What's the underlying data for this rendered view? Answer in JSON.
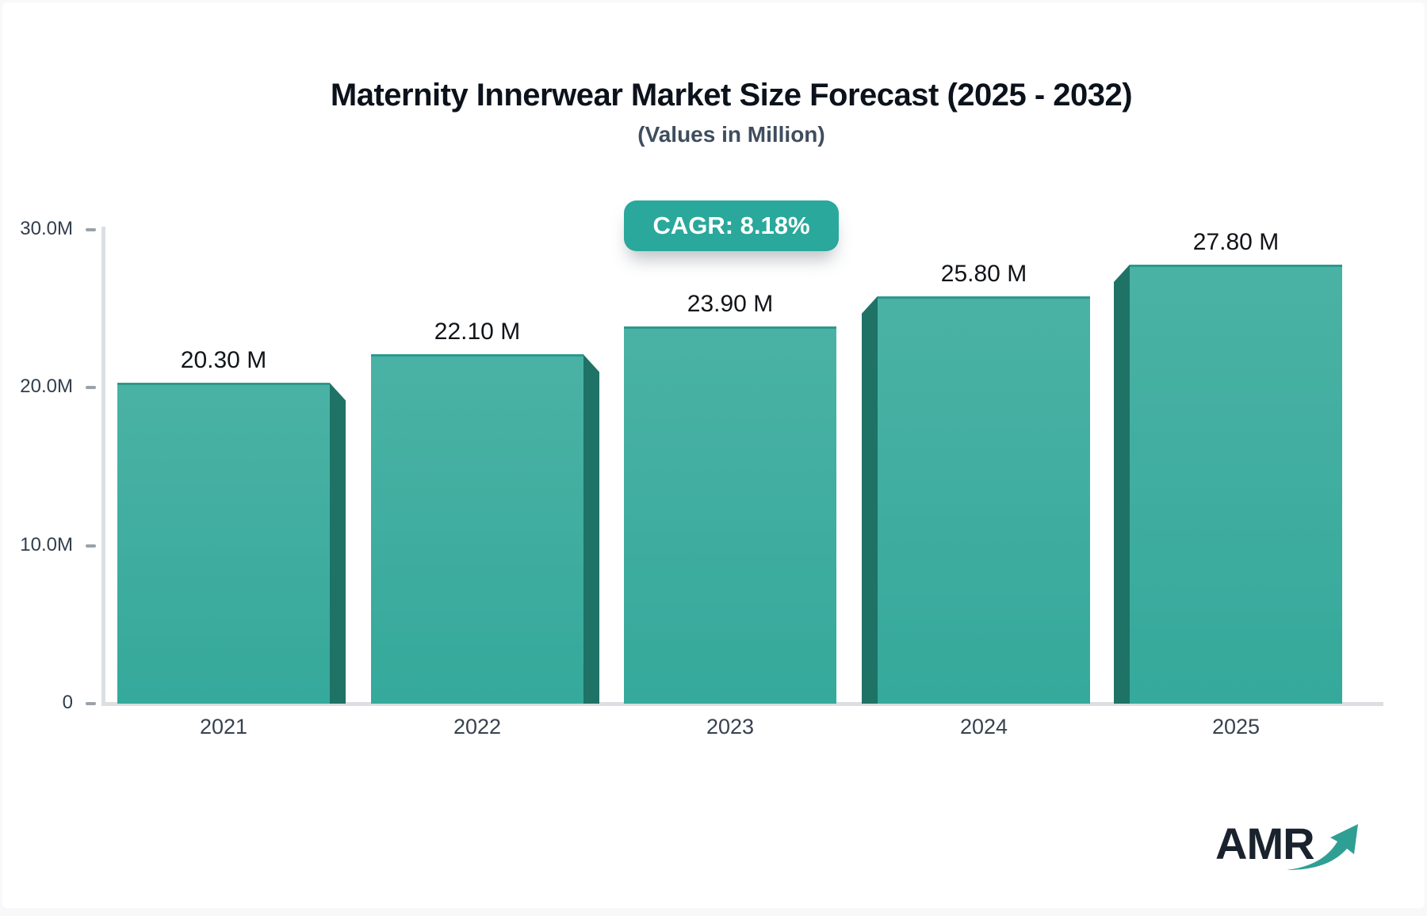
{
  "page": {
    "background_color": "#f7f8fa",
    "card_color": "#ffffff"
  },
  "header": {
    "title": "Maternity Innerwear Market Size Forecast (2025 - 2032)",
    "subtitle": "(Values in Million)",
    "cagr_badge": "CAGR: 8.18%"
  },
  "chart_data": {
    "type": "bar",
    "title": "Maternity Innerwear Market Size Forecast (2025 - 2032)",
    "subtitle": "(Values in Million)",
    "unit": "Million",
    "cagr_percent": 8.18,
    "categories": [
      "2021",
      "2022",
      "2023",
      "2024",
      "2025"
    ],
    "values": [
      20.3,
      22.1,
      23.9,
      25.8,
      27.8
    ],
    "value_labels": [
      "20.30 M",
      "22.10 M",
      "23.90 M",
      "25.80 M",
      "27.80 M"
    ],
    "ylim": [
      0,
      30
    ],
    "yticks": [
      {
        "label": "30.0M",
        "value": 30
      },
      {
        "label": "20.0M",
        "value": 20
      },
      {
        "label": "10.0M",
        "value": 10
      },
      {
        "label": "0",
        "value": 0
      }
    ],
    "grid": false,
    "legend": "none",
    "bar_style": "3d-extruded",
    "bar_3d_sides": [
      "right",
      "right",
      "none",
      "left",
      "left"
    ],
    "colors": {
      "bar_top": "#4ab2a5",
      "bar_bottom": "#35a99b",
      "bar_side": "#1f7266",
      "badge": "#2aa89b",
      "axis": "#dbdee2"
    }
  },
  "footer": {
    "logo_text": "AMR"
  }
}
